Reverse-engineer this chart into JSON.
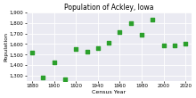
{
  "title": "Population of Ackley, Iowa",
  "xlabel": "Census Year",
  "ylabel": "Population",
  "years": [
    1880,
    1890,
    1900,
    1910,
    1920,
    1930,
    1940,
    1950,
    1960,
    1970,
    1980,
    1990,
    2000,
    2010,
    2020
  ],
  "population": [
    1524,
    1280,
    1430,
    1270,
    1555,
    1530,
    1560,
    1610,
    1710,
    1800,
    1690,
    1830,
    1590,
    1590,
    1600
  ],
  "marker_color": "#2ca02c",
  "marker": "s",
  "marker_size": 5,
  "xlim": [
    1875,
    2025
  ],
  "ylim": [
    1250,
    1900
  ],
  "yticks": [
    1300,
    1400,
    1500,
    1600,
    1700,
    1800,
    1900
  ],
  "xticks": [
    1880,
    1900,
    1920,
    1940,
    1960,
    1980,
    2000,
    2020
  ],
  "title_fontsize": 5.5,
  "label_fontsize": 4.5,
  "tick_fontsize": 4.0,
  "bg_color": "#eaeaf2",
  "grid_color": "#ffffff",
  "grid_lw": 0.6
}
